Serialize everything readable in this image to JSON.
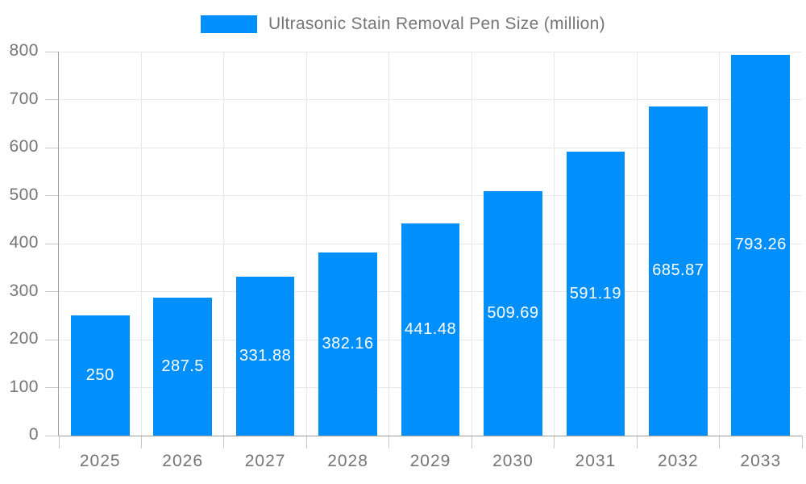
{
  "legend": {
    "label": "Ultrasonic Stain Removal Pen Size (million)",
    "marker_color": "#008FFB"
  },
  "chart_data": {
    "type": "bar",
    "title": "Ultrasonic Stain Removal Pen Size (million)",
    "categories": [
      "2025",
      "2026",
      "2027",
      "2028",
      "2029",
      "2030",
      "2031",
      "2032",
      "2033"
    ],
    "series": [
      {
        "name": "Ultrasonic Stain Removal Pen Size (million)",
        "values": [
          250,
          287.5,
          331.88,
          382.16,
          441.48,
          509.69,
          591.19,
          685.87,
          793.26
        ]
      }
    ],
    "data_labels": [
      "250",
      "287.5",
      "331.88",
      "382.16",
      "441.48",
      "509.69",
      "591.19",
      "685.87",
      "793.26"
    ],
    "xlabel": "",
    "ylabel": "",
    "ylim": [
      0,
      800
    ],
    "ytick_interval": 100,
    "yticks": [
      "0",
      "100",
      "200",
      "300",
      "400",
      "500",
      "600",
      "700",
      "800"
    ],
    "grid": true,
    "legend_position": "top",
    "colors": {
      "bar": "#008FFB",
      "data_label": "#ffffff",
      "axis_text": "#757575",
      "grid_line": "#e7e7e7",
      "axis_line": "#9e9e9e",
      "tick": "#c9c9c9"
    }
  }
}
